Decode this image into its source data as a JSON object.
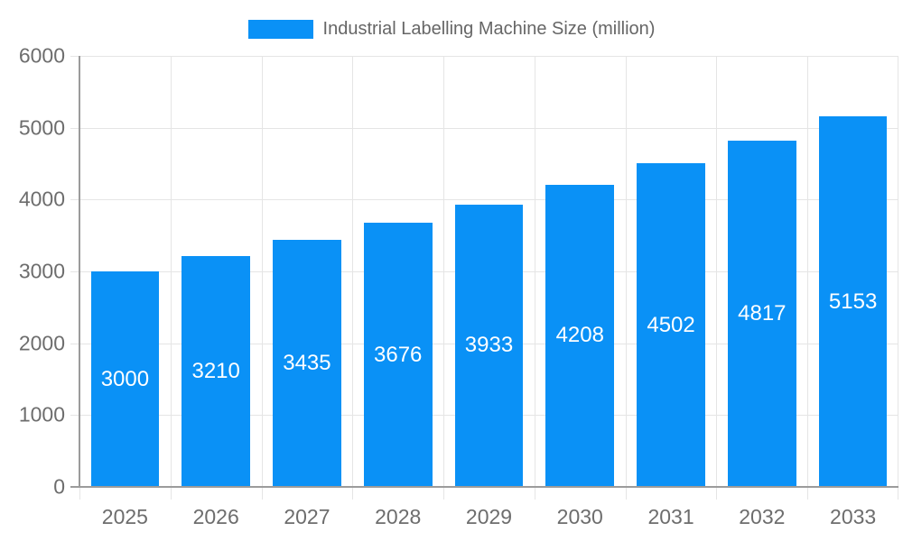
{
  "legend": {
    "label": "Industrial Labelling Machine Size (million)"
  },
  "chart_data": {
    "type": "bar",
    "title": "Industrial Labelling Machine Size (million)",
    "categories": [
      "2025",
      "2026",
      "2027",
      "2028",
      "2029",
      "2030",
      "2031",
      "2032",
      "2033"
    ],
    "series": [
      {
        "name": "Industrial Labelling Machine Size (million)",
        "values": [
          3000,
          3210,
          3435,
          3676,
          3933,
          4208,
          4502,
          4817,
          5153
        ]
      }
    ],
    "xlabel": "",
    "ylabel": "",
    "ylim": [
      0,
      6000
    ],
    "ytick_interval": 1000,
    "ytick_labels": [
      "0",
      "1000",
      "2000",
      "3000",
      "4000",
      "5000",
      "6000"
    ],
    "grid": true,
    "legend_position": "top-center",
    "value_label_position": "inside-center",
    "colors": {
      "bar": "#0A91F6",
      "grid": "#E5E5E5",
      "axis_line": "#9B9B9B",
      "axis_text": "#6D6D6D",
      "value_label": "#FFFFFF",
      "legend_text": "#666666",
      "background": "#FFFFFF"
    }
  }
}
